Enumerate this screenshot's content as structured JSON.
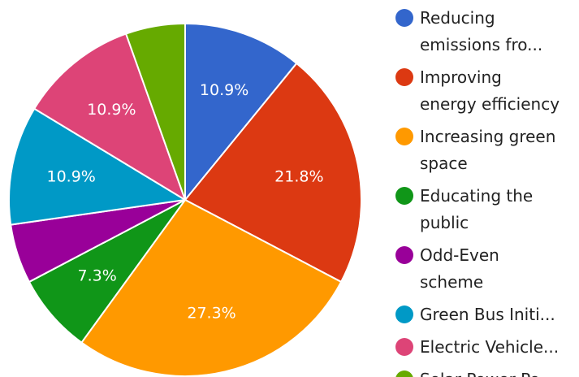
{
  "chart_data": {
    "type": "pie",
    "legend_position": "right",
    "slices": [
      {
        "label": "Reducing emissions fro...",
        "label_lines": [
          "Reducing",
          "emissions fro..."
        ],
        "value": 10.9,
        "display": "10.9%",
        "color": "#3366cc"
      },
      {
        "label": "Improving energy efficiency",
        "label_lines": [
          "Improving",
          "energy efficiency"
        ],
        "value": 21.8,
        "display": "21.8%",
        "color": "#dc3912"
      },
      {
        "label": "Increasing green space",
        "label_lines": [
          "Increasing green",
          "space"
        ],
        "value": 27.3,
        "display": "27.3%",
        "color": "#ff9900"
      },
      {
        "label": "Educating the public",
        "label_lines": [
          "Educating the",
          "public"
        ],
        "value": 7.3,
        "display": "7.3%",
        "color": "#109618"
      },
      {
        "label": "Odd-Even scheme",
        "label_lines": [
          "Odd-Even",
          "scheme"
        ],
        "value": 5.45,
        "display": "",
        "color": "#990099"
      },
      {
        "label": "Green Bus Initi...",
        "label_lines": [
          "Green Bus Initi..."
        ],
        "value": 10.9,
        "display": "10.9%",
        "color": "#0099c6"
      },
      {
        "label": "Electric Vehicle...",
        "label_lines": [
          "Electric Vehicle..."
        ],
        "value": 10.9,
        "display": "10.9%",
        "color": "#dd4477"
      },
      {
        "label": "Solar Power Po...",
        "label_lines": [
          "Solar Power Po..."
        ],
        "value": 5.45,
        "display": "",
        "color": "#66aa00"
      }
    ]
  }
}
